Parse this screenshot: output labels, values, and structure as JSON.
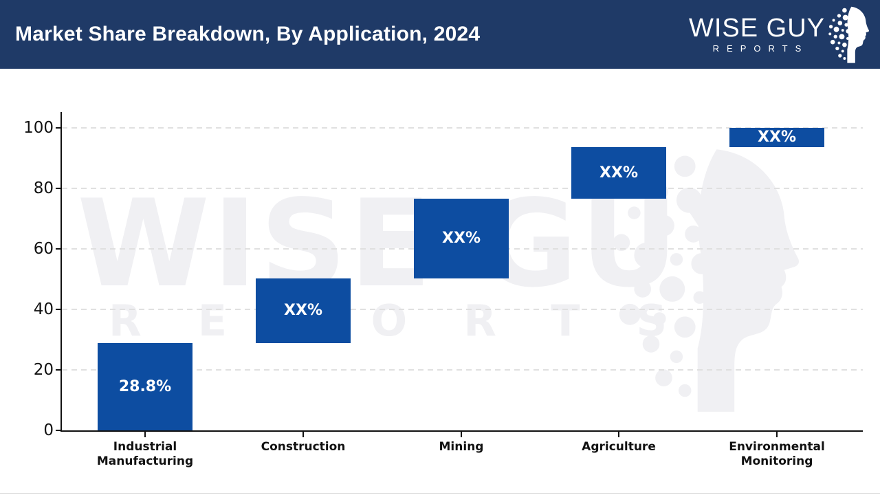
{
  "header": {
    "title": "Market Share Breakdown, By Application, 2024",
    "logo": {
      "line1": "WISE GUY",
      "line2": "REPORTS"
    }
  },
  "watermark": {
    "line1": "WISE GUY",
    "line2": "REPORTS"
  },
  "colors": {
    "header_bg": "#1f3a67",
    "bar": "#0d4da1",
    "gridline": "#e0e0e0",
    "axis": "#111111",
    "bar_label_text": "#ffffff",
    "watermark": "#f0f0f3"
  },
  "chart_data": {
    "type": "bar",
    "subtype": "waterfall-floating-bars",
    "title": "Market Share Breakdown, By Application, 2024",
    "xlabel": "",
    "ylabel": "",
    "categories": [
      "Industrial\nManufacturing",
      "Construction",
      "Mining",
      "Agriculture",
      "Environmental\nMonitoring"
    ],
    "segments": [
      {
        "category": "Industrial Manufacturing",
        "start": 0,
        "end": 28.8,
        "label": "28.8%"
      },
      {
        "category": "Construction",
        "start": 28.8,
        "end": 50.2,
        "label": "XX%"
      },
      {
        "category": "Mining",
        "start": 50.2,
        "end": 76.5,
        "label": "XX%"
      },
      {
        "category": "Agriculture",
        "start": 76.5,
        "end": 93.7,
        "label": "XX%"
      },
      {
        "category": "Environmental Monitoring",
        "start": 93.7,
        "end": 100,
        "label": "XX%"
      }
    ],
    "yticks": [
      0,
      20,
      40,
      60,
      80,
      100
    ],
    "ylim": [
      0,
      105
    ],
    "grid": "horizontal-dashed",
    "legend": "none"
  }
}
